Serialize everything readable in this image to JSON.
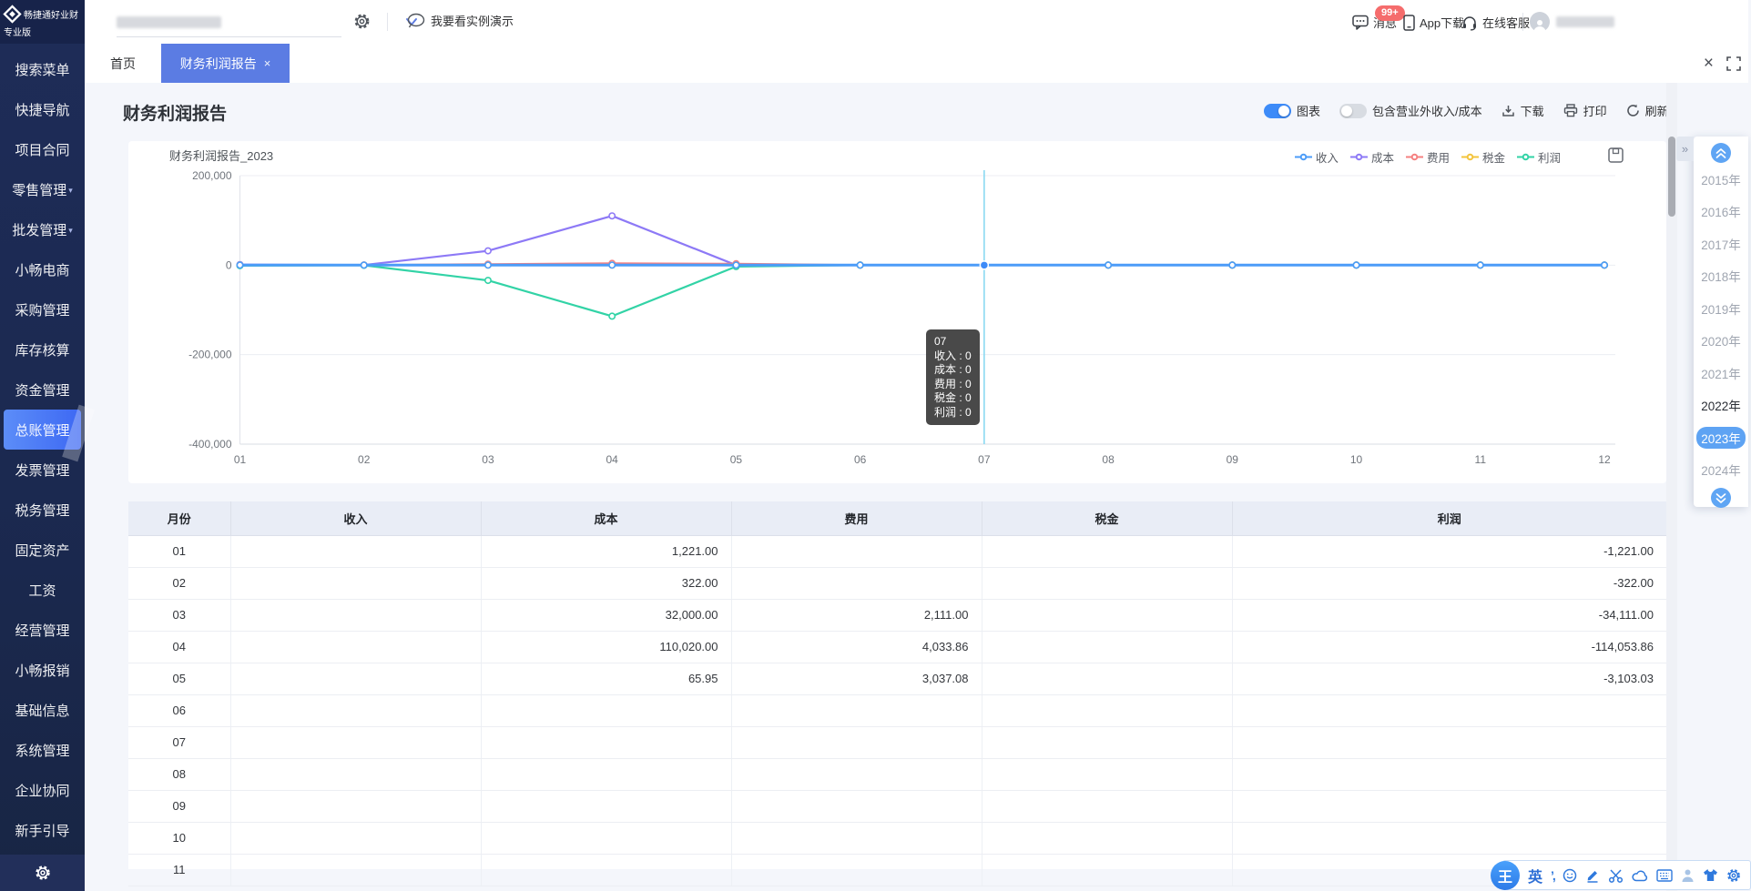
{
  "app": {
    "logo_title": "畅捷通好业财",
    "logo_subtitle": "专业版"
  },
  "icons": {
    "close": "×",
    "collapse": "»",
    "caret": "▾"
  },
  "topbar": {
    "demo_label": "我要看实例演示",
    "messages_label": "消息",
    "messages_badge": "99+",
    "app_download_label": "App下载",
    "support_label": "在线客服"
  },
  "tabs": {
    "home_label": "首页",
    "active_label": "财务利润报告"
  },
  "page": {
    "title": "财务利润报告",
    "chart_toggle_label": "图表",
    "include_toggle_label": "包含营业外收入/成本",
    "download_label": "下载",
    "print_label": "打印",
    "refresh_label": "刷新"
  },
  "sidebar": {
    "items": [
      {
        "label": "搜索菜单"
      },
      {
        "label": "快捷导航"
      },
      {
        "label": "项目合同"
      },
      {
        "label": "零售管理",
        "arrow": true
      },
      {
        "label": "批发管理",
        "arrow": true
      },
      {
        "label": "小畅电商"
      },
      {
        "label": "采购管理"
      },
      {
        "label": "库存核算"
      },
      {
        "label": "资金管理"
      },
      {
        "label": "总账管理",
        "active": true
      },
      {
        "label": "发票管理"
      },
      {
        "label": "税务管理"
      },
      {
        "label": "固定资产"
      },
      {
        "label": "工资"
      },
      {
        "label": "经营管理"
      },
      {
        "label": "小畅报销"
      },
      {
        "label": "基础信息"
      },
      {
        "label": "系统管理"
      },
      {
        "label": "企业协同"
      },
      {
        "label": "新手引导"
      }
    ]
  },
  "years": {
    "items": [
      {
        "label": "2015年"
      },
      {
        "label": "2016年"
      },
      {
        "label": "2017年"
      },
      {
        "label": "2018年"
      },
      {
        "label": "2019年"
      },
      {
        "label": "2020年"
      },
      {
        "label": "2021年"
      },
      {
        "label": "2022年",
        "recent": true
      },
      {
        "label": "2023年",
        "selected": true
      },
      {
        "label": "2024年"
      }
    ]
  },
  "chart_data": {
    "type": "line",
    "title": "财务利润报告_2023",
    "x": [
      "01",
      "02",
      "03",
      "04",
      "05",
      "06",
      "07",
      "08",
      "09",
      "10",
      "11",
      "12"
    ],
    "ylim": [
      -400000,
      200000
    ],
    "yticks": [
      200000,
      0,
      -200000,
      -400000
    ],
    "grid": true,
    "legend_position": "top-right",
    "series": [
      {
        "name": "收入",
        "color": "#4C9CF8",
        "values": [
          0,
          0,
          0,
          0,
          0,
          0,
          0,
          0,
          0,
          0,
          0,
          0
        ]
      },
      {
        "name": "成本",
        "color": "#8D79F6",
        "values": [
          1221,
          322,
          32000,
          110020,
          65.95,
          0,
          0,
          0,
          0,
          0,
          0,
          0
        ]
      },
      {
        "name": "费用",
        "color": "#F58080",
        "values": [
          0,
          0,
          2111,
          4033.86,
          3037.08,
          0,
          0,
          0,
          0,
          0,
          0,
          0
        ]
      },
      {
        "name": "税金",
        "color": "#F3C43C",
        "values": [
          0,
          0,
          0,
          0,
          0,
          0,
          0,
          0,
          0,
          0,
          0,
          0
        ]
      },
      {
        "name": "利润",
        "color": "#32D3A6",
        "values": [
          -1221,
          -322,
          -34111,
          -114053.86,
          -3103.03,
          0,
          0,
          0,
          0,
          0,
          0,
          0
        ]
      }
    ],
    "hover": {
      "x_index": 6,
      "label": "07",
      "crosshair_color": "#8AD9F2",
      "dot_color": "#3D8BF8"
    }
  },
  "tooltip": {
    "title": "07",
    "rows": [
      "收入 : 0",
      "成本 : 0",
      "费用 : 0",
      "税金 : 0",
      "利润 : 0"
    ]
  },
  "table": {
    "headers": [
      "月份",
      "收入",
      "成本",
      "费用",
      "税金",
      "利润"
    ],
    "rows": [
      [
        "01",
        "",
        "1,221.00",
        "",
        "",
        "-1,221.00"
      ],
      [
        "02",
        "",
        "322.00",
        "",
        "",
        "-322.00"
      ],
      [
        "03",
        "",
        "32,000.00",
        "2,111.00",
        "",
        "-34,111.00"
      ],
      [
        "04",
        "",
        "110,020.00",
        "4,033.86",
        "",
        "-114,053.86"
      ],
      [
        "05",
        "",
        "65.95",
        "3,037.08",
        "",
        "-3,103.03"
      ],
      [
        "06",
        "",
        "",
        "",
        "",
        ""
      ],
      [
        "07",
        "",
        "",
        "",
        "",
        ""
      ],
      [
        "08",
        "",
        "",
        "",
        "",
        ""
      ],
      [
        "09",
        "",
        "",
        "",
        "",
        ""
      ],
      [
        "10",
        "",
        "",
        "",
        "",
        ""
      ],
      [
        "11",
        "",
        "",
        "",
        "",
        ""
      ]
    ]
  },
  "ime": {
    "logo": "王",
    "lang": "英",
    "punct": "’,"
  }
}
